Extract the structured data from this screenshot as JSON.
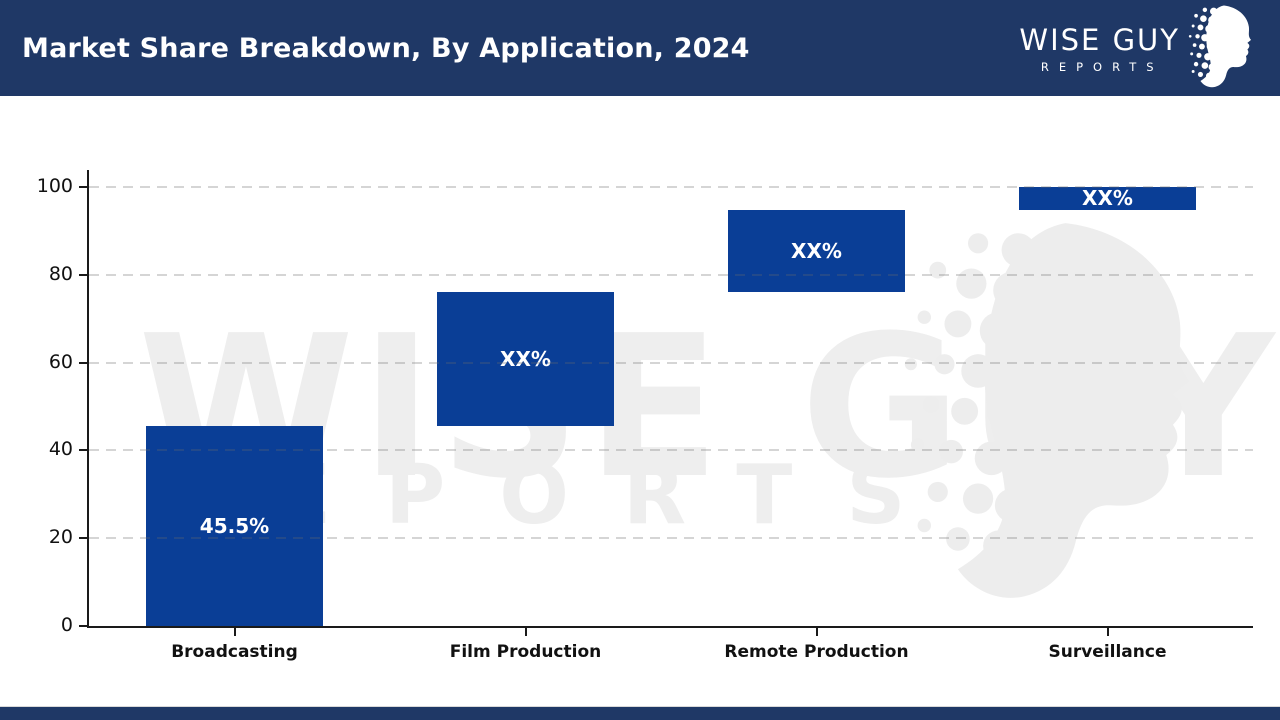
{
  "header": {
    "title": "Market Share Breakdown, By Application, 2024",
    "logo_line1": "WISE GUY",
    "logo_line2": "REPORTS"
  },
  "watermark": {
    "line1": "WISE GUY",
    "line2": "REPORTS"
  },
  "colors": {
    "header_navy": "#1f3866",
    "bar_blue": "#0a3e96",
    "bar_label_white": "#ffffff",
    "watermark_gray": "#eeeeee",
    "grid_gray": "#d9d9d9"
  },
  "chart_data": {
    "type": "bar",
    "subtype": "waterfall-floating-bars",
    "title": "Market Share Breakdown, By Application, 2024",
    "xlabel": "",
    "ylabel": "",
    "categories": [
      "Broadcasting",
      "Film Production",
      "Remote Production",
      "Surveillance"
    ],
    "series": [
      {
        "name": "Market Share (%)",
        "segments": [
          {
            "category": "Broadcasting",
            "start": 0,
            "end": 45.5,
            "label": "45.5%"
          },
          {
            "category": "Film Production",
            "start": 45.5,
            "end": 76,
            "label": "XX%"
          },
          {
            "category": "Remote Production",
            "start": 76,
            "end": 94.8,
            "label": "XX%"
          },
          {
            "category": "Surveillance",
            "start": 94.8,
            "end": 100,
            "label": "XX%"
          }
        ]
      }
    ],
    "ylim": [
      0,
      100
    ],
    "yticks": [
      0,
      20,
      40,
      60,
      80,
      100
    ],
    "grid": "horizontal-dashed",
    "legend": "none",
    "bar_color": "#0a3e96",
    "label_color": "#ffffff"
  }
}
